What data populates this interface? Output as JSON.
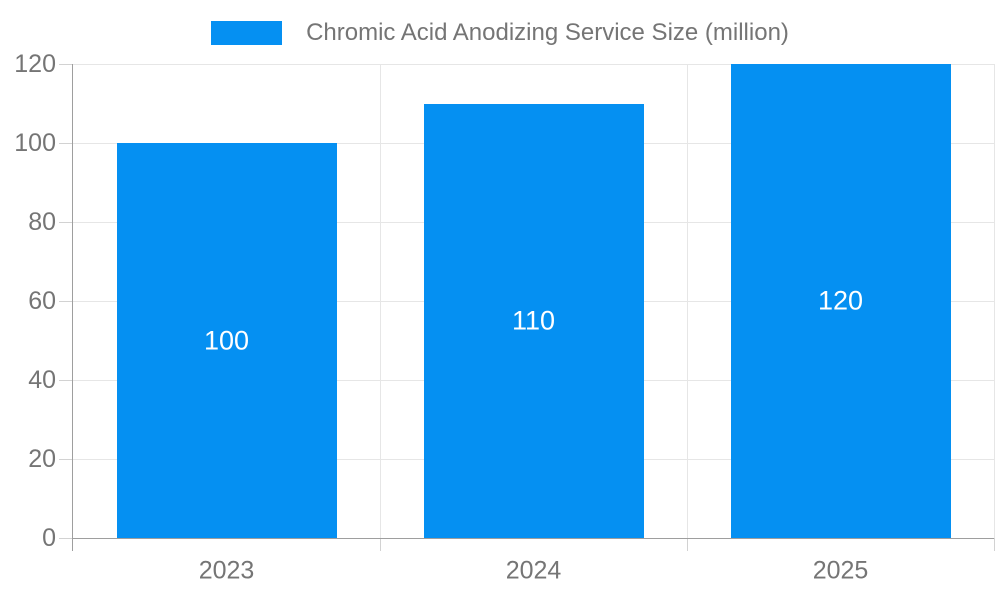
{
  "chart_data": {
    "type": "bar",
    "title": "Chromic Acid Anodizing Service Size (million)",
    "categories": [
      "2023",
      "2024",
      "2025"
    ],
    "values": [
      100,
      110,
      120
    ],
    "series": [
      {
        "name": "Chromic Acid Anodizing Service Size (million)",
        "values": [
          100,
          110,
          120
        ]
      }
    ],
    "bar_value_labels": [
      "100",
      "110",
      "120"
    ],
    "xlabel": "",
    "ylabel": "",
    "ylim": [
      0,
      120
    ],
    "yticks": [
      0,
      20,
      40,
      60,
      80,
      100,
      120
    ],
    "grid": true,
    "legend_position": "top-center",
    "colors": {
      "bar": "#0590f2",
      "bar_label": "#ffffff",
      "axis_text": "#757575",
      "legend_text": "#757575",
      "axis_line": "#9e9e9e",
      "gridline": "#e6e6e6",
      "tick": "#d2d2d2",
      "background": "#ffffff"
    }
  }
}
